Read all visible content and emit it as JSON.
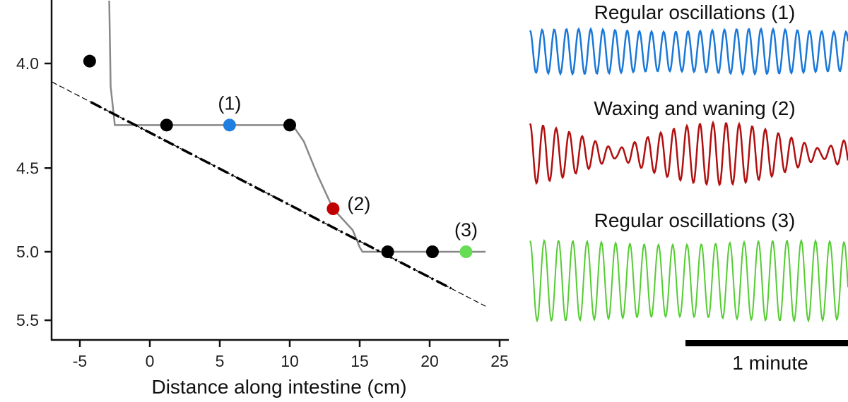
{
  "chart_data": [
    {
      "type": "scatter",
      "xlabel": "Distance along intestine (cm)",
      "ylabel": "",
      "xlim": [
        -7,
        25
      ],
      "ylim": [
        3.75,
        5.6
      ],
      "y_scale": "reciprocal (increasing downward)",
      "x_ticks": [
        "-5",
        "0",
        "5",
        "10",
        "15",
        "20",
        "25"
      ],
      "x_tick_values": [
        -5,
        0,
        5,
        10,
        15,
        20,
        25
      ],
      "y_ticks": [
        "4.0",
        "4.5",
        "5.0",
        "5.5"
      ],
      "y_tick_values": [
        4.0,
        4.5,
        5.0,
        5.5
      ],
      "grid": false,
      "points": [
        {
          "x": -4.3,
          "y": 3.99,
          "color": "#000000"
        },
        {
          "x": 1.2,
          "y": 4.28,
          "color": "#000000"
        },
        {
          "x": 5.7,
          "y": 4.28,
          "color": "#1f7fe0",
          "label": "(1)"
        },
        {
          "x": 10.0,
          "y": 4.28,
          "color": "#000000"
        },
        {
          "x": 13.1,
          "y": 4.73,
          "color": "#c00000",
          "label": "(2)"
        },
        {
          "x": 17.0,
          "y": 5.0,
          "color": "#000000"
        },
        {
          "x": 20.2,
          "y": 5.0,
          "color": "#000000"
        },
        {
          "x": 22.6,
          "y": 5.0,
          "color": "#66dd55",
          "label": "(3)"
        }
      ],
      "gray_line": {
        "color": "#888888",
        "x": [
          -2.9,
          -2.8,
          -2.5,
          10.2,
          11.0,
          12.0,
          13.1,
          14.5,
          15.0,
          15.2,
          24.0
        ],
        "y": [
          3.75,
          4.1,
          4.28,
          4.28,
          4.36,
          4.54,
          4.73,
          4.86,
          4.97,
          5.0,
          5.0
        ]
      },
      "dashed_line": {
        "color": "#000000",
        "x": [
          -7,
          24
        ],
        "y": [
          4.08,
          5.39
        ]
      }
    },
    {
      "type": "line",
      "traces": [
        {
          "title": "Regular oscillations (1)",
          "color": "#1a78d8"
        },
        {
          "title": "Waxing and waning (2)",
          "color": "#b01010"
        },
        {
          "title": "Regular oscillations (3)",
          "color": "#55cc33"
        }
      ],
      "scale_bar": "1 minute"
    }
  ]
}
